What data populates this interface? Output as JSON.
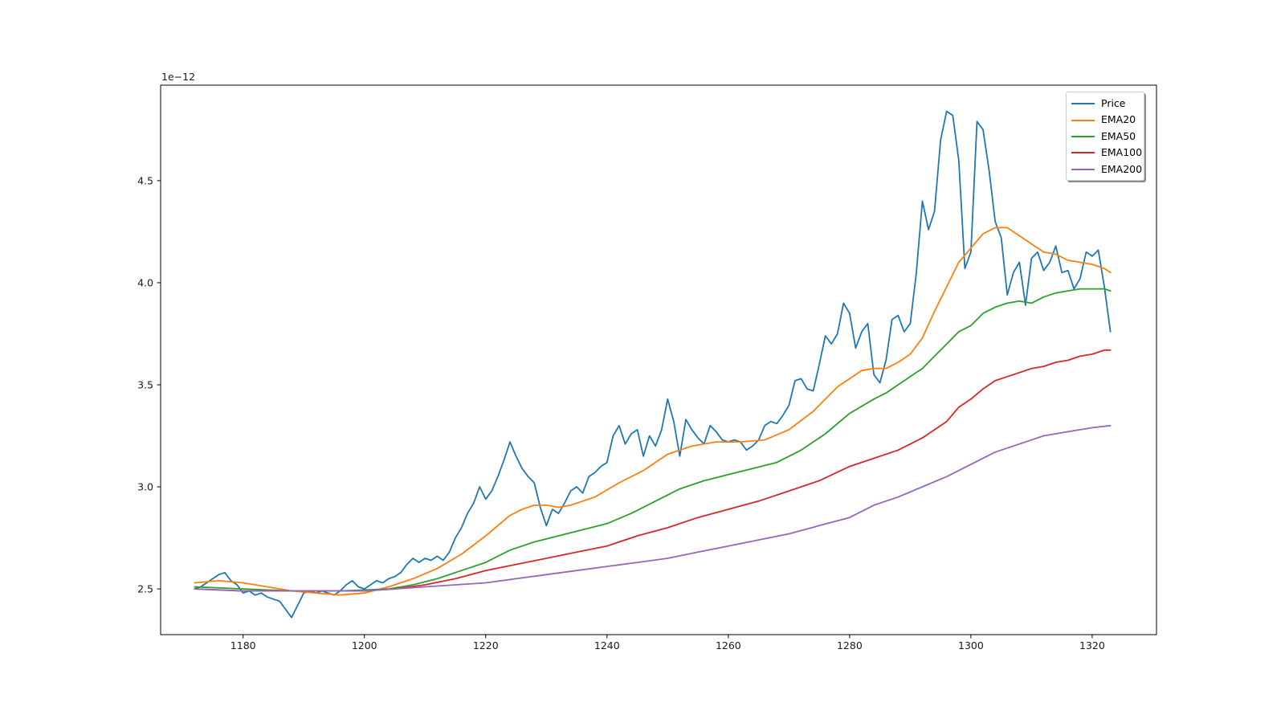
{
  "figure": {
    "background": "#ffffff",
    "offset_label": "1e−12"
  },
  "chart_data": {
    "type": "line",
    "title": "",
    "xlabel": "",
    "ylabel": "",
    "offset_text": "1e−12",
    "value_scale": "1e-12",
    "grid": false,
    "legend_position": "upper right",
    "xlim": [
      1166.4,
      1330.6
    ],
    "ylim": [
      2.276,
      4.968
    ],
    "x_ticks": [
      1180,
      1200,
      1220,
      1240,
      1260,
      1280,
      1300,
      1320
    ],
    "x_tick_labels": [
      "1180",
      "1200",
      "1220",
      "1240",
      "1260",
      "1280",
      "1300",
      "1320"
    ],
    "y_ticks": [
      2.5,
      3.0,
      3.5,
      4.0,
      4.5
    ],
    "y_tick_labels": [
      "2.5",
      "3.0",
      "3.5",
      "4.0",
      "4.5"
    ],
    "series": [
      {
        "name": "Price",
        "color": "#1f77b4",
        "x_start": 1172,
        "x_step": 1,
        "values": [
          2.5,
          2.51,
          2.53,
          2.55,
          2.57,
          2.58,
          2.54,
          2.52,
          2.48,
          2.49,
          2.47,
          2.48,
          2.46,
          2.45,
          2.44,
          2.4,
          2.36,
          2.42,
          2.48,
          2.49,
          2.48,
          2.49,
          2.48,
          2.47,
          2.49,
          2.52,
          2.54,
          2.51,
          2.5,
          2.52,
          2.54,
          2.53,
          2.55,
          2.56,
          2.58,
          2.62,
          2.65,
          2.63,
          2.65,
          2.64,
          2.66,
          2.64,
          2.68,
          2.75,
          2.8,
          2.87,
          2.92,
          3.0,
          2.94,
          2.98,
          3.05,
          3.13,
          3.22,
          3.15,
          3.09,
          3.05,
          3.02,
          2.9,
          2.81,
          2.89,
          2.87,
          2.92,
          2.98,
          3.0,
          2.97,
          3.05,
          3.07,
          3.1,
          3.12,
          3.25,
          3.3,
          3.21,
          3.26,
          3.28,
          3.15,
          3.25,
          3.2,
          3.28,
          3.43,
          3.32,
          3.15,
          3.33,
          3.28,
          3.24,
          3.21,
          3.3,
          3.27,
          3.23,
          3.22,
          3.23,
          3.22,
          3.18,
          3.2,
          3.23,
          3.3,
          3.32,
          3.31,
          3.35,
          3.4,
          3.52,
          3.53,
          3.48,
          3.47,
          3.6,
          3.74,
          3.7,
          3.75,
          3.9,
          3.85,
          3.68,
          3.76,
          3.8,
          3.55,
          3.51,
          3.62,
          3.82,
          3.84,
          3.76,
          3.8,
          4.05,
          4.4,
          4.26,
          4.35,
          4.7,
          4.84,
          4.82,
          4.6,
          4.07,
          4.15,
          4.79,
          4.75,
          4.55,
          4.3,
          4.22,
          3.94,
          4.05,
          4.1,
          3.89,
          4.12,
          4.15,
          4.06,
          4.1,
          4.18,
          4.05,
          4.06,
          3.97,
          4.02,
          4.15,
          4.13,
          4.16,
          3.98,
          3.76
        ]
      },
      {
        "name": "EMA20",
        "color": "#ff7f0e",
        "points": [
          [
            1172,
            2.53
          ],
          [
            1176,
            2.54
          ],
          [
            1180,
            2.53
          ],
          [
            1184,
            2.51
          ],
          [
            1188,
            2.49
          ],
          [
            1192,
            2.48
          ],
          [
            1196,
            2.47
          ],
          [
            1200,
            2.48
          ],
          [
            1204,
            2.51
          ],
          [
            1208,
            2.55
          ],
          [
            1212,
            2.6
          ],
          [
            1216,
            2.67
          ],
          [
            1220,
            2.76
          ],
          [
            1224,
            2.86
          ],
          [
            1226,
            2.89
          ],
          [
            1228,
            2.91
          ],
          [
            1230,
            2.91
          ],
          [
            1232,
            2.9
          ],
          [
            1234,
            2.91
          ],
          [
            1238,
            2.95
          ],
          [
            1242,
            3.02
          ],
          [
            1246,
            3.08
          ],
          [
            1250,
            3.16
          ],
          [
            1254,
            3.2
          ],
          [
            1258,
            3.22
          ],
          [
            1262,
            3.22
          ],
          [
            1266,
            3.23
          ],
          [
            1270,
            3.28
          ],
          [
            1274,
            3.37
          ],
          [
            1278,
            3.49
          ],
          [
            1282,
            3.57
          ],
          [
            1284,
            3.58
          ],
          [
            1286,
            3.58
          ],
          [
            1288,
            3.61
          ],
          [
            1290,
            3.65
          ],
          [
            1292,
            3.73
          ],
          [
            1294,
            3.86
          ],
          [
            1296,
            3.98
          ],
          [
            1298,
            4.1
          ],
          [
            1300,
            4.17
          ],
          [
            1302,
            4.24
          ],
          [
            1304,
            4.27
          ],
          [
            1306,
            4.27
          ],
          [
            1308,
            4.23
          ],
          [
            1310,
            4.19
          ],
          [
            1312,
            4.15
          ],
          [
            1314,
            4.14
          ],
          [
            1316,
            4.11
          ],
          [
            1318,
            4.1
          ],
          [
            1320,
            4.09
          ],
          [
            1322,
            4.07
          ],
          [
            1323,
            4.05
          ]
        ]
      },
      {
        "name": "EMA50",
        "color": "#2ca02c",
        "points": [
          [
            1172,
            2.51
          ],
          [
            1180,
            2.5
          ],
          [
            1188,
            2.49
          ],
          [
            1196,
            2.49
          ],
          [
            1204,
            2.5
          ],
          [
            1208,
            2.52
          ],
          [
            1212,
            2.55
          ],
          [
            1216,
            2.59
          ],
          [
            1220,
            2.63
          ],
          [
            1224,
            2.69
          ],
          [
            1228,
            2.73
          ],
          [
            1232,
            2.76
          ],
          [
            1236,
            2.79
          ],
          [
            1240,
            2.82
          ],
          [
            1244,
            2.87
          ],
          [
            1248,
            2.93
          ],
          [
            1252,
            2.99
          ],
          [
            1256,
            3.03
          ],
          [
            1260,
            3.06
          ],
          [
            1264,
            3.09
          ],
          [
            1268,
            3.12
          ],
          [
            1272,
            3.18
          ],
          [
            1276,
            3.26
          ],
          [
            1280,
            3.36
          ],
          [
            1284,
            3.43
          ],
          [
            1286,
            3.46
          ],
          [
            1288,
            3.5
          ],
          [
            1290,
            3.54
          ],
          [
            1292,
            3.58
          ],
          [
            1294,
            3.64
          ],
          [
            1296,
            3.7
          ],
          [
            1298,
            3.76
          ],
          [
            1300,
            3.79
          ],
          [
            1302,
            3.85
          ],
          [
            1304,
            3.88
          ],
          [
            1306,
            3.9
          ],
          [
            1308,
            3.91
          ],
          [
            1310,
            3.9
          ],
          [
            1312,
            3.93
          ],
          [
            1314,
            3.95
          ],
          [
            1316,
            3.96
          ],
          [
            1318,
            3.97
          ],
          [
            1320,
            3.97
          ],
          [
            1322,
            3.97
          ],
          [
            1323,
            3.96
          ]
        ]
      },
      {
        "name": "EMA100",
        "color": "#d62728",
        "points": [
          [
            1172,
            2.5
          ],
          [
            1180,
            2.49
          ],
          [
            1190,
            2.49
          ],
          [
            1200,
            2.49
          ],
          [
            1205,
            2.5
          ],
          [
            1210,
            2.52
          ],
          [
            1215,
            2.55
          ],
          [
            1220,
            2.59
          ],
          [
            1225,
            2.62
          ],
          [
            1230,
            2.65
          ],
          [
            1235,
            2.68
          ],
          [
            1240,
            2.71
          ],
          [
            1245,
            2.76
          ],
          [
            1250,
            2.8
          ],
          [
            1255,
            2.85
          ],
          [
            1260,
            2.89
          ],
          [
            1265,
            2.93
          ],
          [
            1270,
            2.98
          ],
          [
            1275,
            3.03
          ],
          [
            1280,
            3.1
          ],
          [
            1284,
            3.14
          ],
          [
            1288,
            3.18
          ],
          [
            1292,
            3.24
          ],
          [
            1296,
            3.32
          ],
          [
            1298,
            3.39
          ],
          [
            1300,
            3.43
          ],
          [
            1302,
            3.48
          ],
          [
            1304,
            3.52
          ],
          [
            1306,
            3.54
          ],
          [
            1308,
            3.56
          ],
          [
            1310,
            3.58
          ],
          [
            1312,
            3.59
          ],
          [
            1314,
            3.61
          ],
          [
            1316,
            3.62
          ],
          [
            1318,
            3.64
          ],
          [
            1320,
            3.65
          ],
          [
            1322,
            3.67
          ],
          [
            1323,
            3.67
          ]
        ]
      },
      {
        "name": "EMA200",
        "color": "#9467bd",
        "points": [
          [
            1172,
            2.5
          ],
          [
            1180,
            2.49
          ],
          [
            1190,
            2.49
          ],
          [
            1200,
            2.49
          ],
          [
            1205,
            2.5
          ],
          [
            1210,
            2.51
          ],
          [
            1215,
            2.52
          ],
          [
            1220,
            2.53
          ],
          [
            1225,
            2.55
          ],
          [
            1230,
            2.57
          ],
          [
            1235,
            2.59
          ],
          [
            1240,
            2.61
          ],
          [
            1245,
            2.63
          ],
          [
            1250,
            2.65
          ],
          [
            1255,
            2.68
          ],
          [
            1260,
            2.71
          ],
          [
            1265,
            2.74
          ],
          [
            1270,
            2.77
          ],
          [
            1275,
            2.81
          ],
          [
            1280,
            2.85
          ],
          [
            1284,
            2.91
          ],
          [
            1288,
            2.95
          ],
          [
            1292,
            3.0
          ],
          [
            1296,
            3.05
          ],
          [
            1300,
            3.11
          ],
          [
            1304,
            3.17
          ],
          [
            1308,
            3.21
          ],
          [
            1312,
            3.25
          ],
          [
            1316,
            3.27
          ],
          [
            1320,
            3.29
          ],
          [
            1323,
            3.3
          ]
        ]
      }
    ]
  },
  "axes_style": {
    "spine_color": "#000000",
    "tick_color": "#000000",
    "label_color": "#1a1a1a"
  }
}
